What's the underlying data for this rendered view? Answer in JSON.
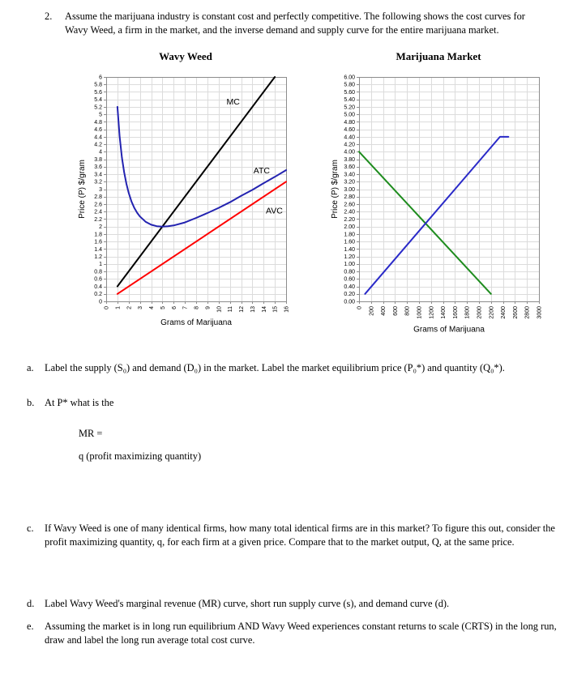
{
  "page": {
    "number": "2.",
    "intro": "Assume the marijuana industry is constant cost and perfectly competitive. The following shows the cost curves for Wavy Weed, a firm in the market, and the inverse demand and supply curve for the entire marijuana market."
  },
  "chart_data": [
    {
      "name": "wavy-weed",
      "type": "line",
      "title": "Wavy Weed",
      "xlabel": "Grams of Marijuana",
      "ylabel": "Price (P) $/gram",
      "xlim": [
        0,
        16
      ],
      "ylim": [
        0,
        6
      ],
      "grid": true,
      "legend": "none",
      "x_ticks": [
        "0",
        "1",
        "2",
        "3",
        "4",
        "5",
        "6",
        "7",
        "8",
        "9",
        "10",
        "11",
        "12",
        "13",
        "14",
        "15",
        "16"
      ],
      "y_ticks": [
        "0",
        "0.2",
        "0.4",
        "0.6",
        "0.8",
        "1",
        "1.2",
        "1.4",
        "1.6",
        "1.8",
        "2",
        "2.2",
        "2.4",
        "2.6",
        "2.8",
        "3",
        "3.2",
        "3.4",
        "3.6",
        "3.8",
        "4",
        "4.2",
        "4.4",
        "4.6",
        "4.8",
        "5",
        "5.2",
        "5.4",
        "5.6",
        "5.8",
        "6"
      ],
      "series": [
        {
          "name": "MC",
          "color": "#000000",
          "points": [
            [
              1,
              0.4
            ],
            [
              15,
              6
            ]
          ]
        },
        {
          "name": "ATC",
          "color": "#2323b0",
          "points": [
            [
              1,
              5.2
            ],
            [
              1.2,
              4.41
            ],
            [
              1.4,
              3.85
            ],
            [
              1.6,
              3.45
            ],
            [
              1.8,
              3.14
            ],
            [
              2,
              2.9
            ],
            [
              2.25,
              2.67
            ],
            [
              2.5,
              2.5
            ],
            [
              2.75,
              2.37
            ],
            [
              3,
              2.27
            ],
            [
              3.5,
              2.13
            ],
            [
              4,
              2.05
            ],
            [
              4.5,
              2.01
            ],
            [
              5,
              2
            ],
            [
              5.5,
              2.01
            ],
            [
              6,
              2.03
            ],
            [
              7,
              2.11
            ],
            [
              8,
              2.23
            ],
            [
              9,
              2.36
            ],
            [
              10,
              2.5
            ],
            [
              11,
              2.65
            ],
            [
              12,
              2.82
            ],
            [
              13,
              2.98
            ],
            [
              14,
              3.16
            ],
            [
              15,
              3.33
            ],
            [
              16,
              3.51
            ]
          ]
        },
        {
          "name": "AVC",
          "color": "#ff0000",
          "points": [
            [
              1,
              0.2
            ],
            [
              16,
              3.2
            ]
          ]
        }
      ],
      "annotations": [
        {
          "text": "MC",
          "x": 10.7,
          "y": 5.26
        },
        {
          "text": "ATC",
          "x": 13.1,
          "y": 3.42
        },
        {
          "text": "AVC",
          "x": 14.2,
          "y": 2.35
        }
      ]
    },
    {
      "name": "marijuana-market",
      "type": "line",
      "title": "Marijuana Market",
      "xlabel": "Grams of Marijuana",
      "ylabel": "Price (P) $/gram",
      "xlim": [
        0,
        3000
      ],
      "ylim": [
        0,
        6
      ],
      "grid": true,
      "legend": "none",
      "x_ticks": [
        "0",
        "200",
        "400",
        "600",
        "800",
        "1000",
        "1200",
        "1400",
        "1600",
        "1800",
        "2000",
        "2200",
        "2400",
        "2600",
        "2800",
        "3000"
      ],
      "y_ticks": [
        "0.00",
        "0.20",
        "0.40",
        "0.60",
        "0.80",
        "1.00",
        "1.20",
        "1.40",
        "1.60",
        "1.80",
        "2.00",
        "2.20",
        "2.40",
        "2.60",
        "2.80",
        "3.00",
        "3.20",
        "3.40",
        "3.60",
        "3.80",
        "4.00",
        "4.20",
        "4.40",
        "4.60",
        "4.80",
        "5.00",
        "5.20",
        "5.40",
        "5.60",
        "5.80",
        "6.00"
      ],
      "series": [
        {
          "name": "Demand",
          "color": "#1e8c1e",
          "points": [
            [
              0,
              4
            ],
            [
              2200,
              0.2
            ]
          ]
        },
        {
          "name": "Supply",
          "color": "#2a2ac8",
          "points": [
            [
              100,
              0.2
            ],
            [
              2350,
              4.4
            ],
            [
              2490,
              4.4
            ]
          ]
        }
      ],
      "annotations": []
    }
  ],
  "questions": [
    {
      "marker": "a.",
      "text": "Label the supply (S₀) and demand (D₀) in the market.  Label the market equilibrium price (P₀*) and quantity (Q₀*)."
    },
    {
      "marker": "b.",
      "text": "At P* what is the",
      "sub": [
        "MR =",
        "q (profit maximizing quantity)"
      ]
    },
    {
      "marker": "c.",
      "text": "If Wavy Weed is one of many identical firms, how many total identical firms are in this market?  To figure this out, consider the profit maximizing quantity, q, for each firm at a given price.  Compare that to the market output, Q, at the same price."
    },
    {
      "marker": "d.",
      "text": "Label Wavy Weed's marginal revenue (MR) curve, short run supply curve (s), and demand curve (d)."
    },
    {
      "marker": "e.",
      "text": "Assuming the market is in long run equilibrium AND Wavy Weed experiences constant returns to scale (CRTS) in the long run, draw and label the long run average total cost curve."
    }
  ]
}
